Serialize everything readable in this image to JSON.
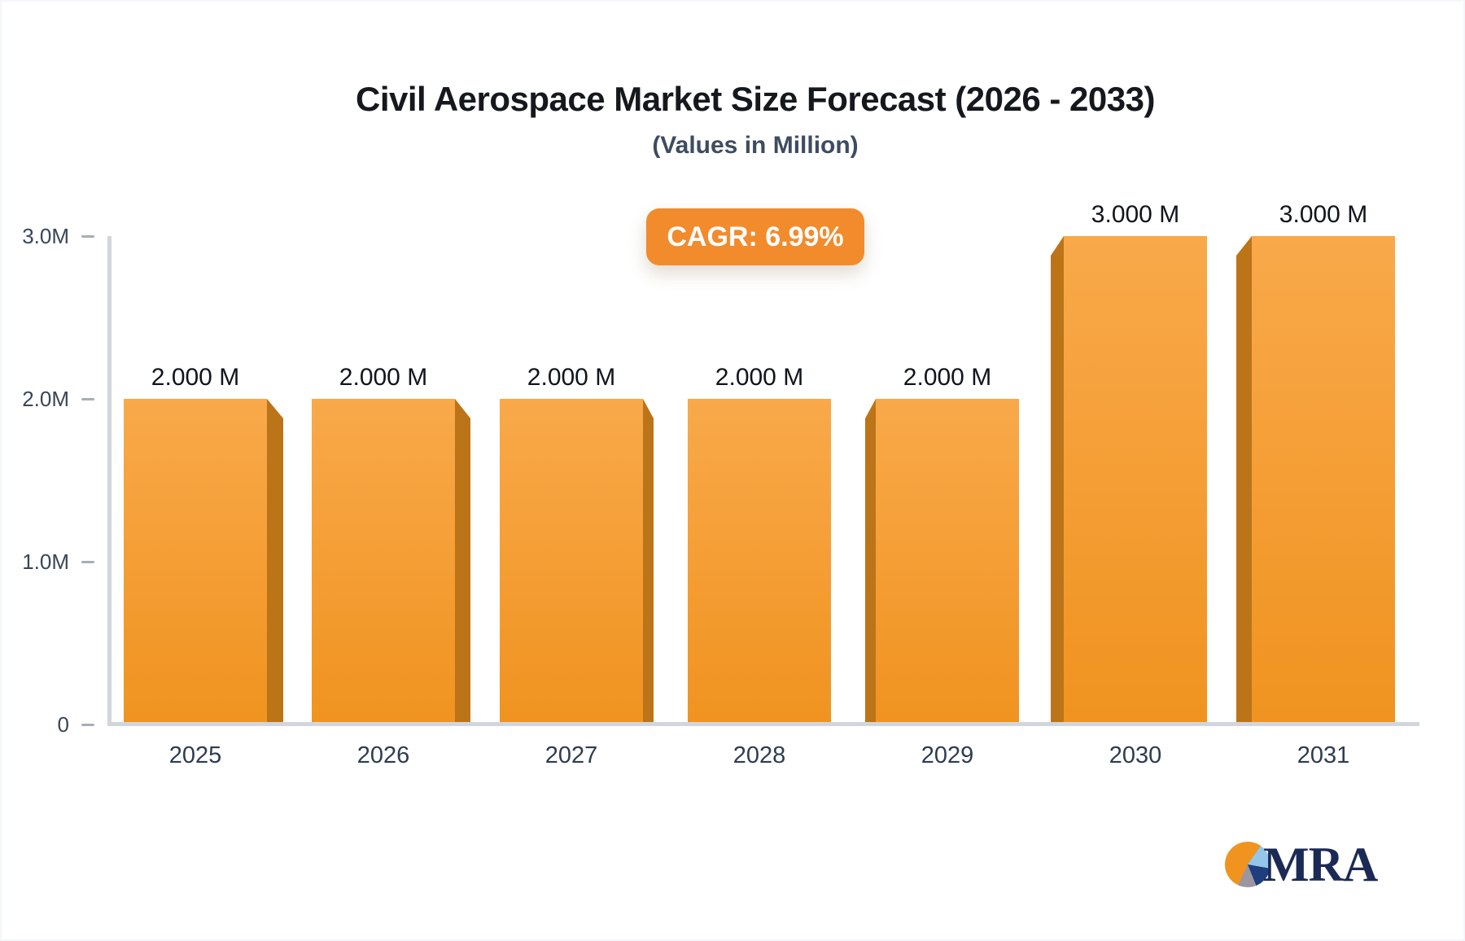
{
  "header": {
    "title": "Civil Aerospace Market Size Forecast (2026 - 2033)",
    "subtitle": "(Values in Million)",
    "cagr_label": "CAGR: 6.99%"
  },
  "chart_data": {
    "type": "bar",
    "title": "Civil Aerospace Market Size Forecast (2026 - 2033)",
    "subtitle": "(Values in Million)",
    "unit": "Million",
    "cagr_percent": "6.99%",
    "categories": [
      "2025",
      "2026",
      "2027",
      "2028",
      "2029",
      "2030",
      "2031"
    ],
    "values": [
      2.0,
      2.0,
      2.0,
      2.0,
      2.0,
      3.0,
      3.0
    ],
    "value_labels": [
      "2.000 M",
      "2.000 M",
      "2.000 M",
      "2.000 M",
      "2.000 M",
      "3.000 M",
      "3.000 M"
    ],
    "xlabel": "",
    "ylabel": "",
    "ylim": [
      0,
      3
    ],
    "grid": false,
    "legend": false,
    "yticks": [
      {
        "label": "3.0M",
        "value": 3
      },
      {
        "label": "2.0M",
        "value": 2
      },
      {
        "label": "1.0M",
        "value": 1
      },
      {
        "label": "0",
        "value": 0
      }
    ]
  },
  "colors": {
    "bar_top": "#F9A94A",
    "bar_bottom": "#F09320",
    "bar_side": "#BC7418",
    "badge_bg": "#F28B2C",
    "axis_line": "#D2D6DC",
    "tick_dash": "#A7AEB6",
    "title_color": "#15181D",
    "subtitle_color": "#3E4C61",
    "tick_text": "#3A4657",
    "year_text": "#2E3C51",
    "value_text": "#10151B",
    "pie_orange": "#F0941F",
    "pie_lightblue": "#94C6E9",
    "pie_navy": "#1F3E7E",
    "pie_gray": "#9B96A0",
    "logo_text_color": "#1B2A55"
  },
  "logo": {
    "text": "MRA"
  }
}
